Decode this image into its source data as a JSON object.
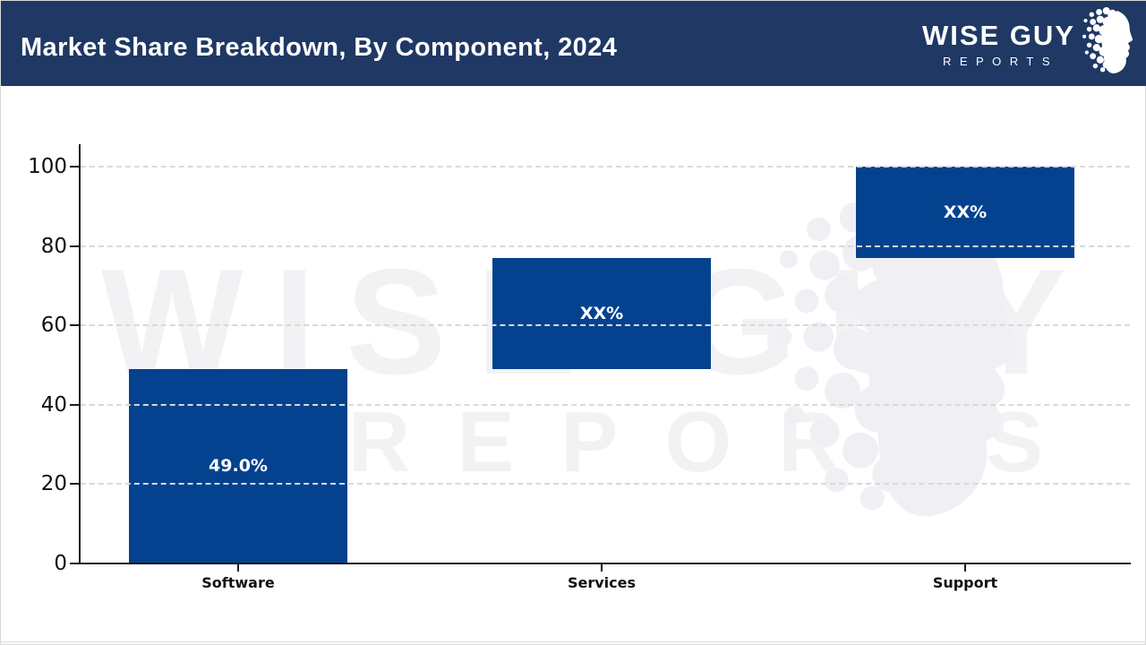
{
  "header": {
    "title": "Market Share Breakdown, By Component, 2024",
    "logo": {
      "line1": "WISE GUY",
      "line2": "REPORTS"
    }
  },
  "watermark": {
    "line1": "WISE GUY",
    "line2": "REPORTS"
  },
  "chart_data": {
    "type": "bar",
    "subtype": "waterfall",
    "title": "Market Share Breakdown, By Component, 2024",
    "categories": [
      "Software",
      "Services",
      "Support"
    ],
    "bars": [
      {
        "category": "Software",
        "label": "49.0%",
        "start": 0,
        "end": 49
      },
      {
        "category": "Services",
        "label": "XX%",
        "start": 49,
        "end": 77
      },
      {
        "category": "Support",
        "label": "XX%",
        "start": 77,
        "end": 100
      }
    ],
    "yticks": [
      0,
      20,
      40,
      60,
      80,
      100
    ],
    "ylim": [
      0,
      105
    ],
    "grid": "horizontal-dashed",
    "legend": "none",
    "bar_color": "#04428f",
    "grid_color": "#d9d9d9",
    "header_color": "#1f3864"
  }
}
